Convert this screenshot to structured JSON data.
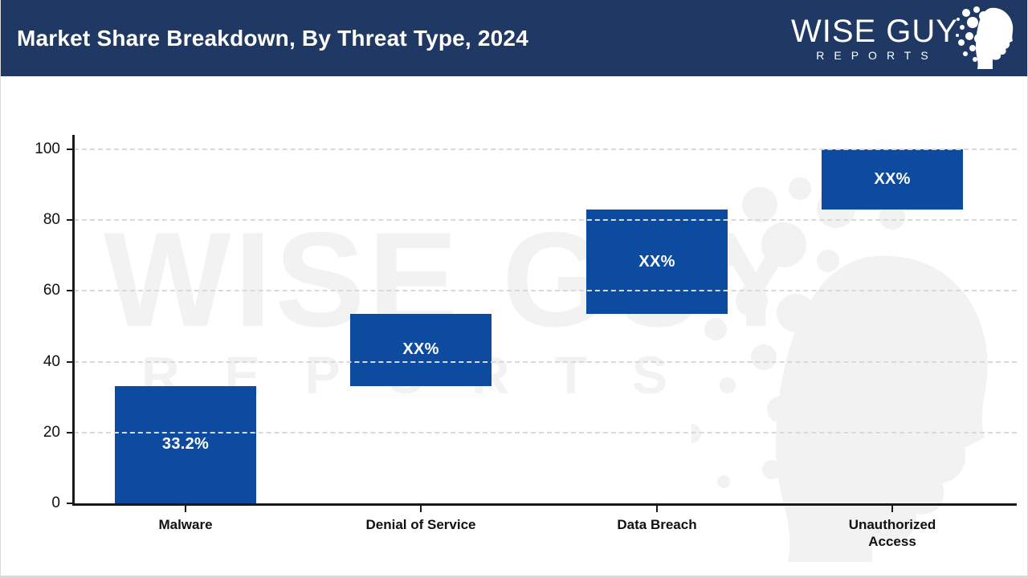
{
  "header": {
    "title": "Market Share Breakdown, By Threat Type, 2024",
    "logo": {
      "line1": "WISE GUY",
      "line2": "REPORTS"
    }
  },
  "watermark": {
    "line1": "WISE GUY",
    "line2": "REPORTS"
  },
  "colors": {
    "header_bg": "#1f3864",
    "bar": "#0d4ba0",
    "watermark": "#f2f2f2",
    "gridline": "#d9d9d9",
    "axis": "#1a1a1a",
    "bar_label_text": "#ffffff"
  },
  "chart_data": {
    "type": "bar",
    "subtype": "waterfall",
    "title": "Market Share Breakdown, By Threat Type, 2024",
    "categories": [
      "Malware",
      "Denial of Service",
      "Data Breach",
      "Unauthorized Access"
    ],
    "series": [
      {
        "name": "Market Share (%)",
        "segments": [
          {
            "category": "Malware",
            "start": 0,
            "end": 33.2,
            "label": "33.2%"
          },
          {
            "category": "Denial of Service",
            "start": 33.2,
            "end": 53.5,
            "label": "XX%"
          },
          {
            "category": "Data Breach",
            "start": 53.5,
            "end": 83.0,
            "label": "XX%"
          },
          {
            "category": "Unauthorized Access",
            "start": 83.0,
            "end": 100.0,
            "label": "XX%"
          }
        ]
      }
    ],
    "xlabel": "",
    "ylabel": "",
    "ylim": [
      0,
      100
    ],
    "yticks": [
      0,
      20,
      40,
      60,
      80,
      100
    ],
    "grid": "horizontal-dashed, drawn over bars",
    "legend": "none"
  }
}
